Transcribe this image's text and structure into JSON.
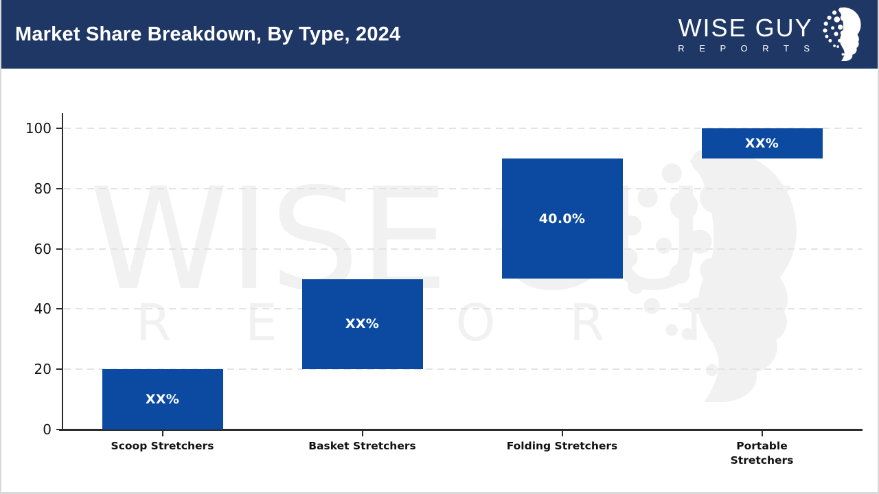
{
  "header": {
    "title": "Market Share Breakdown, By Type, 2024",
    "brand": {
      "line1": "WISE GUY",
      "line2": "R E P O R T S"
    }
  },
  "watermark": {
    "line1": "WISE GUY",
    "line2": "R E P O R T S"
  },
  "colors": {
    "header_bg": "#1f3765",
    "bar": "#0b4aa0",
    "grid": "#e3e3e3",
    "axis": "#2b2b2b",
    "watermark": "#f1f1f1"
  },
  "chart_data": {
    "type": "bar",
    "variant": "floating-waterfall",
    "title": "Market Share Breakdown, By Type, 2024",
    "categories": [
      "Scoop Stretchers",
      "Basket Stretchers",
      "Folding Stretchers",
      "Portable\nStretchers"
    ],
    "series": [
      {
        "name": "Market Share",
        "segments": [
          {
            "category": "Scoop Stretchers",
            "start": 0,
            "end": 20,
            "label": "XX%"
          },
          {
            "category": "Basket Stretchers",
            "start": 20,
            "end": 50,
            "label": "XX%"
          },
          {
            "category": "Folding Stretchers",
            "start": 50,
            "end": 90,
            "label": "40.0%"
          },
          {
            "category": "Portable Stretchers",
            "start": 90,
            "end": 100,
            "label": "XX%"
          }
        ]
      }
    ],
    "xlabel": "",
    "ylabel": "",
    "yticks": [
      0,
      20,
      40,
      60,
      80,
      100
    ],
    "ylim": [
      0,
      100
    ],
    "grid": "horizontal-dashed",
    "legend": "none"
  }
}
